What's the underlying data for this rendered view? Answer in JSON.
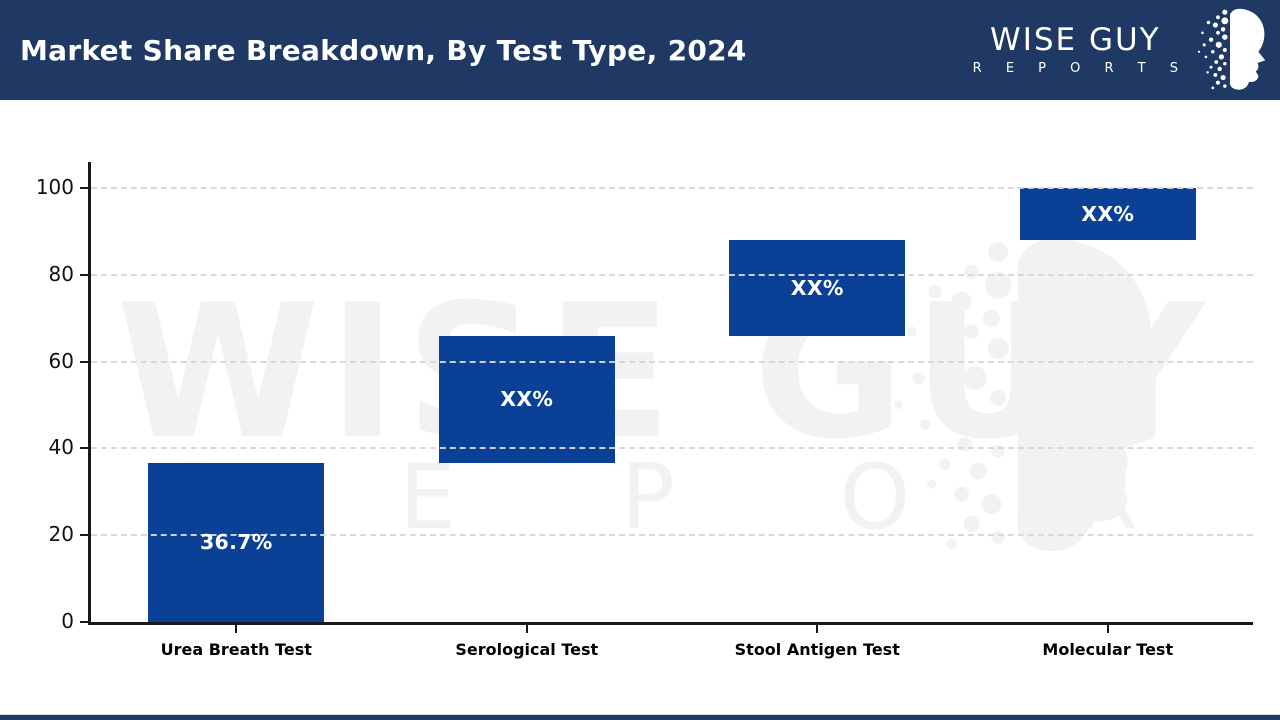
{
  "header": {
    "title": "Market Share Breakdown, By Test Type, 2024",
    "bg_color": "#1f3864",
    "logo": {
      "line1": "WISE GUY",
      "line2": "R E P O R T S"
    }
  },
  "chart_data": {
    "type": "bar",
    "subtype": "waterfall",
    "title": "Market Share Breakdown, By Test Type, 2024",
    "categories": [
      "Urea Breath Test",
      "Serological Test",
      "Stool Antigen Test",
      "Molecular Test"
    ],
    "segments": [
      {
        "category": "Urea Breath Test",
        "start": 0,
        "end": 36.7,
        "label": "36.7%"
      },
      {
        "category": "Serological Test",
        "start": 36.7,
        "end": 66,
        "label": "XX%"
      },
      {
        "category": "Stool Antigen Test",
        "start": 66,
        "end": 88,
        "label": "XX%"
      },
      {
        "category": "Molecular Test",
        "start": 88,
        "end": 100,
        "label": "XX%"
      }
    ],
    "xlabel": "",
    "ylabel": "",
    "ylim": [
      0,
      100
    ],
    "yticks": [
      0,
      20,
      40,
      60,
      80,
      100
    ],
    "grid": "horizontal-dashed, drawn above bars",
    "legend": "none",
    "bar_color": "#0a4196",
    "bar_label_color": "#ffffff",
    "axis_color": "#1a1a1a",
    "gridline_color": "#d7d7d7",
    "watermark": {
      "line1": "WISE GUY",
      "line2": "R E P O R T S",
      "color": "#f1f2f4"
    }
  },
  "footer": {
    "bg_color": "#1f3864"
  }
}
